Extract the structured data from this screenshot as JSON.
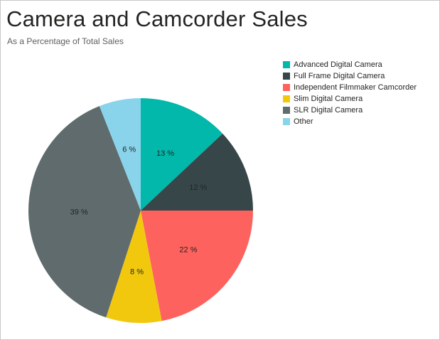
{
  "chart_data": {
    "type": "pie",
    "title": "Camera and Camcorder Sales",
    "subtitle": "As a Percentage of Total Sales",
    "categories": [
      "Advanced Digital Camera",
      "Full Frame Digital Camera",
      "Independent Filmmaker Camcorder",
      "Slim Digital Camera",
      "SLR Digital Camera",
      "Other"
    ],
    "values": [
      13,
      12,
      22,
      8,
      39,
      6
    ],
    "labels": [
      "13 %",
      "12 %",
      "22 %",
      "8 %",
      "39 %",
      "6 %"
    ],
    "unit": "%",
    "colors": [
      "#01B8AA",
      "#374649",
      "#FD625E",
      "#F2C80F",
      "#5F6B6D",
      "#8AD4EB"
    ],
    "start_angle_deg": 0,
    "direction": "clockwise",
    "legend_position": "top-right",
    "label_color": "#252423"
  }
}
